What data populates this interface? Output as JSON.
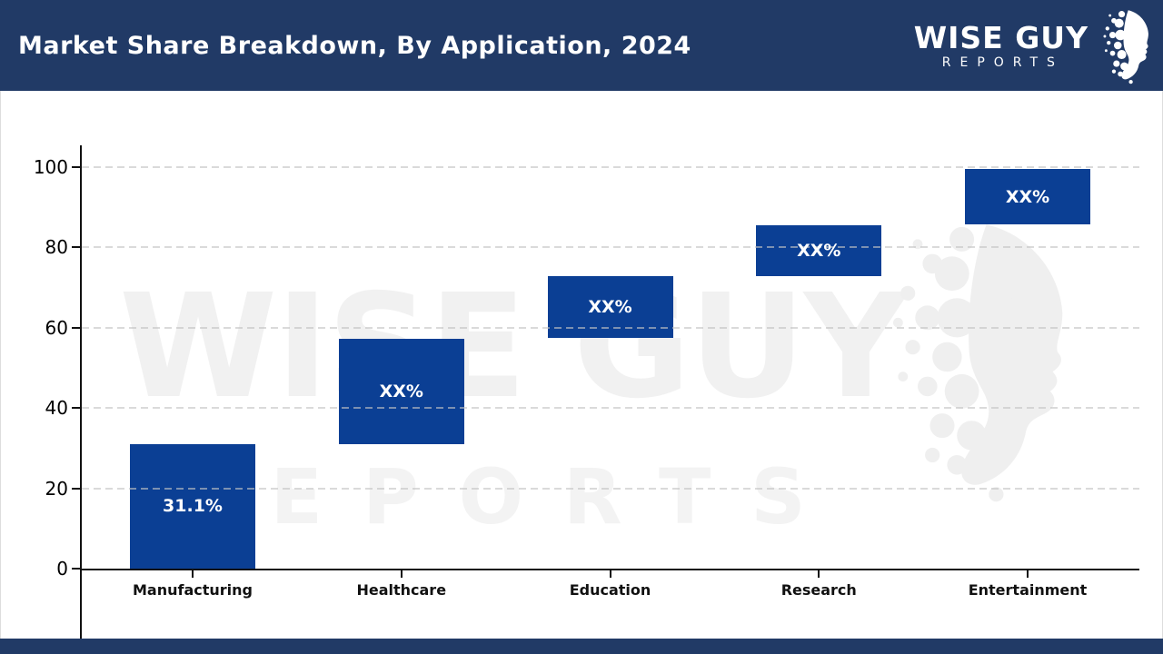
{
  "header": {
    "title": "Market Share Breakdown, By Application, 2024",
    "logo": {
      "line1": "WISE GUY",
      "line2": "REPORTS"
    }
  },
  "watermark": {
    "line1": "WISE GUY",
    "line2": "REPORTS"
  },
  "colors": {
    "header_bg": "#213A66",
    "footer_bg": "#213A66",
    "bar": "#0B3F94",
    "bar_label": "#FFFFFF",
    "axis": "#111111",
    "gridline": "#D9D9D9",
    "watermark": "#F1F1F1"
  },
  "chart_data": {
    "type": "bar",
    "subtype": "waterfall",
    "title": "Market Share Breakdown, By Application, 2024",
    "xlabel": "",
    "ylabel": "",
    "categories": [
      "Manufacturing",
      "Healthcare",
      "Education",
      "Research",
      "Entertainment"
    ],
    "segments": [
      {
        "category": "Manufacturing",
        "start": 0,
        "end": 31.1,
        "label": "31.1%"
      },
      {
        "category": "Healthcare",
        "start": 31.1,
        "end": 57.2,
        "label": "XX%"
      },
      {
        "category": "Education",
        "start": 57.5,
        "end": 72.9,
        "label": "XX%"
      },
      {
        "category": "Research",
        "start": 72.9,
        "end": 85.5,
        "label": "XX%"
      },
      {
        "category": "Entertainment",
        "start": 85.7,
        "end": 99.5,
        "label": "XX%"
      }
    ],
    "y_ticks": [
      0,
      20,
      40,
      60,
      80,
      100
    ],
    "ylim": [
      0,
      105
    ],
    "grid": "horizontal-dashed",
    "grid_above_bars": true,
    "legend": "none",
    "bar_color": "#0B3F94"
  }
}
